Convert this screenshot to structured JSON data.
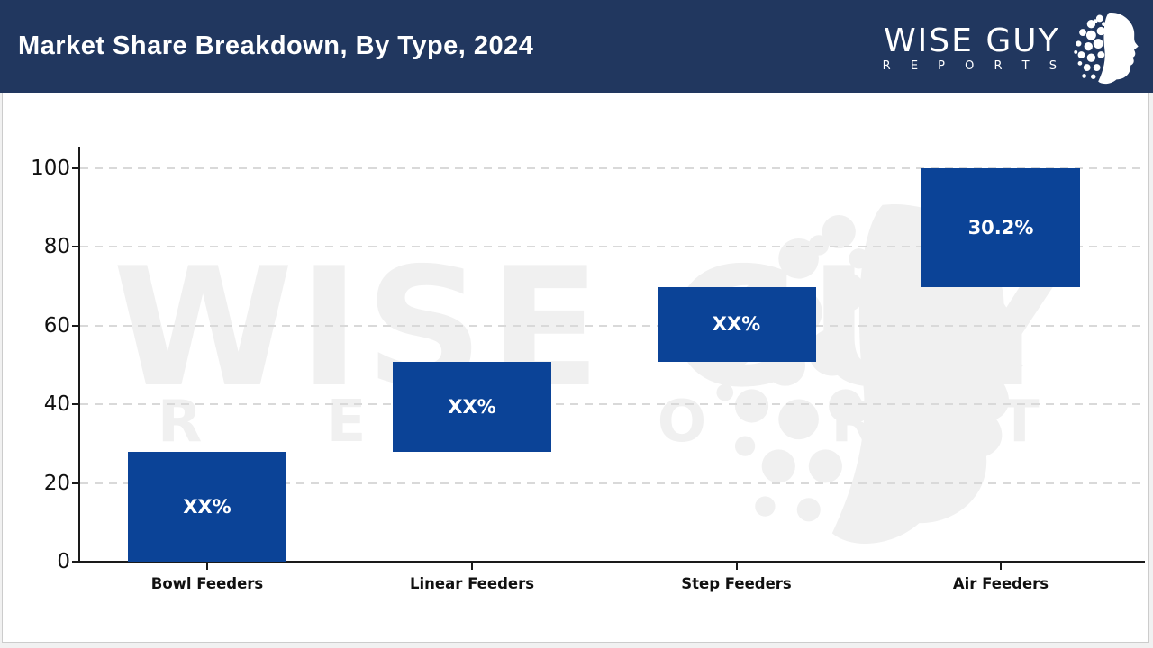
{
  "header": {
    "title": "Market Share Breakdown, By Type, 2024",
    "logo": {
      "line1": "WISE GUY",
      "line2": "R E P O R T S"
    }
  },
  "watermark": {
    "line1": "WISE GUY",
    "line2": "R E P O R T S"
  },
  "chart_data": {
    "type": "bar",
    "subtype": "waterfall",
    "title": "Market Share Breakdown, By Type, 2024",
    "categories": [
      "Bowl Feeders",
      "Linear Feeders",
      "Step Feeders",
      "Air Feeders"
    ],
    "segments": [
      {
        "category": "Bowl Feeders",
        "start": 0,
        "end": 27.9,
        "label": "XX%"
      },
      {
        "category": "Linear Feeders",
        "start": 27.9,
        "end": 50.7,
        "label": "XX%"
      },
      {
        "category": "Step Feeders",
        "start": 50.7,
        "end": 69.8,
        "label": "XX%"
      },
      {
        "category": "Air Feeders",
        "start": 69.8,
        "end": 100,
        "label": "30.2%"
      }
    ],
    "yticks": [
      0,
      20,
      40,
      60,
      80,
      100
    ],
    "ylim": [
      0,
      100
    ],
    "grid": "horizontal-dashed",
    "legend": "none",
    "colors": {
      "bar": "#0b4397",
      "header_bg": "#21375f",
      "grid": "#d9d9d9",
      "axis": "#1a1a1a",
      "watermark": "#f0f0f0",
      "label_text": "#ffffff"
    }
  }
}
